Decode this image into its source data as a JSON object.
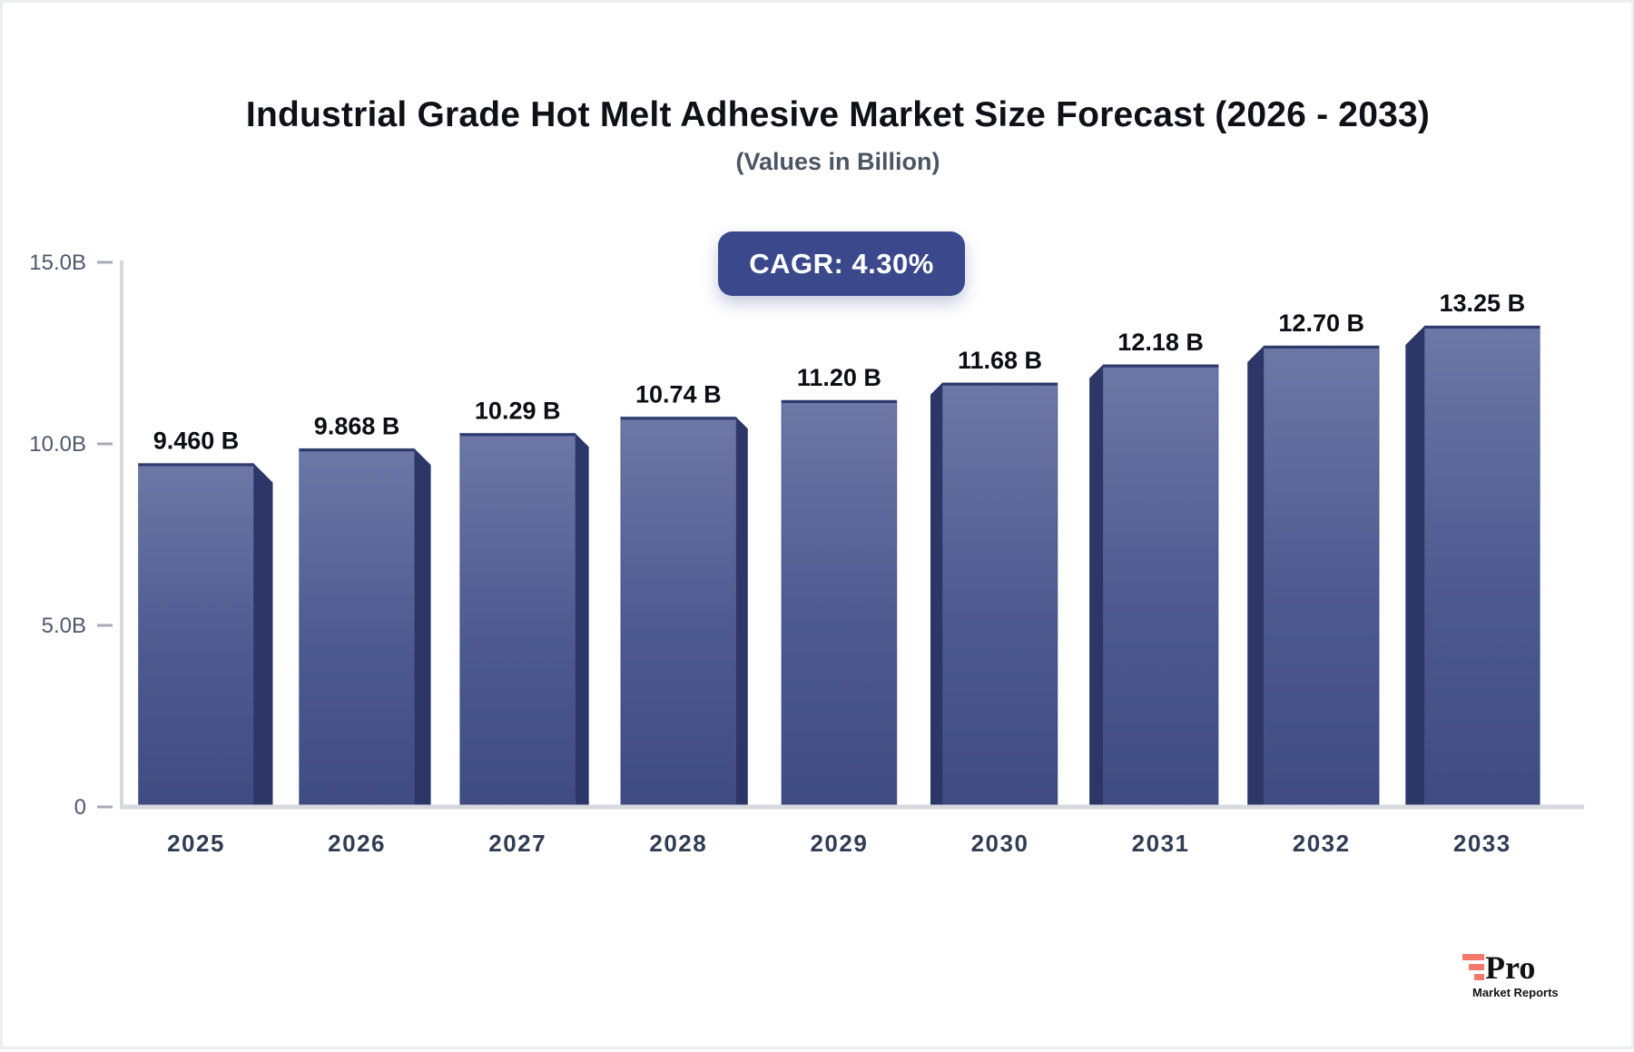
{
  "title": "Industrial Grade Hot Melt Adhesive Market Size Forecast (2026 - 2033)",
  "subtitle": "(Values in Billion)",
  "cagr_badge_label": "CAGR: 4.30%",
  "logo": {
    "name": "Pro",
    "tagline": "Market Reports",
    "accent_color": "#f4776c"
  },
  "chart_data": {
    "type": "bar",
    "title": "Industrial Grade Hot Melt Adhesive Market Size Forecast (2026 - 2033)",
    "subtitle": "(Values in Billion)",
    "cagr_percent": 4.3,
    "categories": [
      "2025",
      "2026",
      "2027",
      "2028",
      "2029",
      "2030",
      "2031",
      "2032",
      "2033"
    ],
    "values": [
      9.46,
      9.868,
      10.29,
      10.74,
      11.2,
      11.68,
      12.18,
      12.7,
      13.25
    ],
    "value_labels": [
      "9.460 B",
      "9.868 B",
      "10.29 B",
      "10.74 B",
      "11.20 B",
      "11.68 B",
      "12.18 B",
      "12.70 B",
      "13.25 B"
    ],
    "unit": "Billion",
    "xlabel": "",
    "ylabel": "",
    "ylim": [
      0,
      15
    ],
    "ytick_values": [
      0,
      5,
      10,
      15
    ],
    "ytick_labels": [
      "0",
      "5.0B",
      "10.0B",
      "15.0B"
    ],
    "grid": false,
    "legend": false,
    "colors": {
      "bar_top": "#6d78a6",
      "bar_mid": "#4d5990",
      "bar_bottom": "#3f4b82",
      "bar_side": "#2c3767",
      "bar_top_edge": "#2e3a6e",
      "axis_line": "#d7d9de",
      "tick": "#a7abb4",
      "ytick_text": "#4e586a",
      "xtick_text": "#313d54",
      "value_text": "#0d0d15",
      "badge_bg": "#3b488c"
    }
  }
}
